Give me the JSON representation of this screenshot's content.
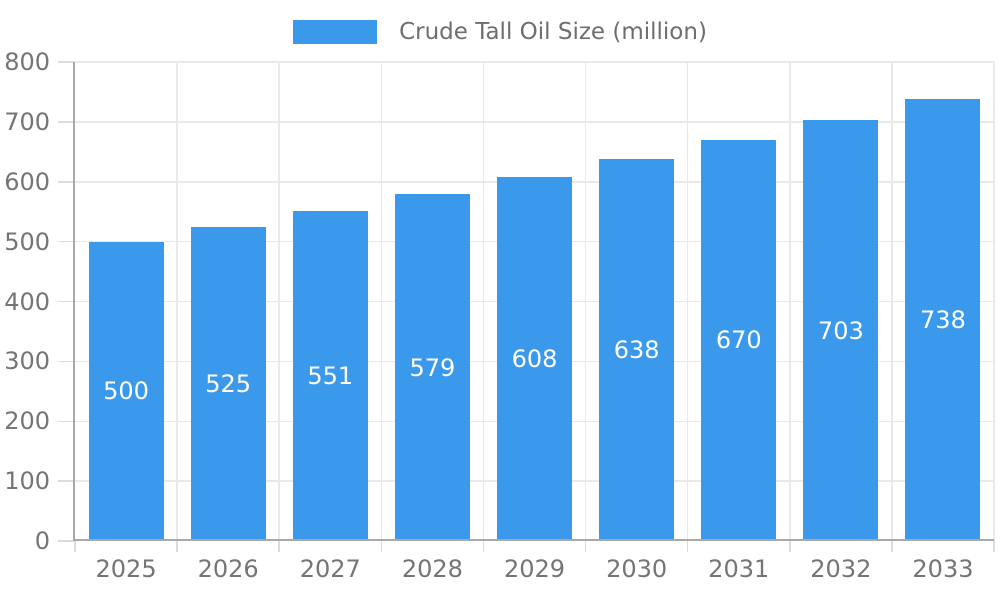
{
  "legend": {
    "label": "Crude Tall Oil Size (million)"
  },
  "colors": {
    "bar": "#3b99ec",
    "bar_label": "#ffffff",
    "grid": "#e9e9e9",
    "tick": "#dcdcdc",
    "axis_line": "#a8a8a8",
    "axis_text": "#757575",
    "legend_text": "#6e6e6e",
    "background": "#ffffff"
  },
  "chart_data": {
    "type": "bar",
    "title": "Crude Tall Oil Size (million)",
    "series_name": "Crude Tall Oil Size (million)",
    "categories": [
      "2025",
      "2026",
      "2027",
      "2028",
      "2029",
      "2030",
      "2031",
      "2032",
      "2033"
    ],
    "values": [
      500,
      525,
      551,
      579,
      608,
      638,
      670,
      703,
      738
    ],
    "bar_labels": [
      "500",
      "525",
      "551",
      "579",
      "608",
      "638",
      "670",
      "703",
      "738"
    ],
    "xlabel": "",
    "ylabel": "",
    "ylim": [
      0,
      800
    ],
    "yticks": [
      0,
      100,
      200,
      300,
      400,
      500,
      600,
      700,
      800
    ],
    "grid": true,
    "legend_position": "top-center",
    "bar_label_position": "inside-center"
  }
}
